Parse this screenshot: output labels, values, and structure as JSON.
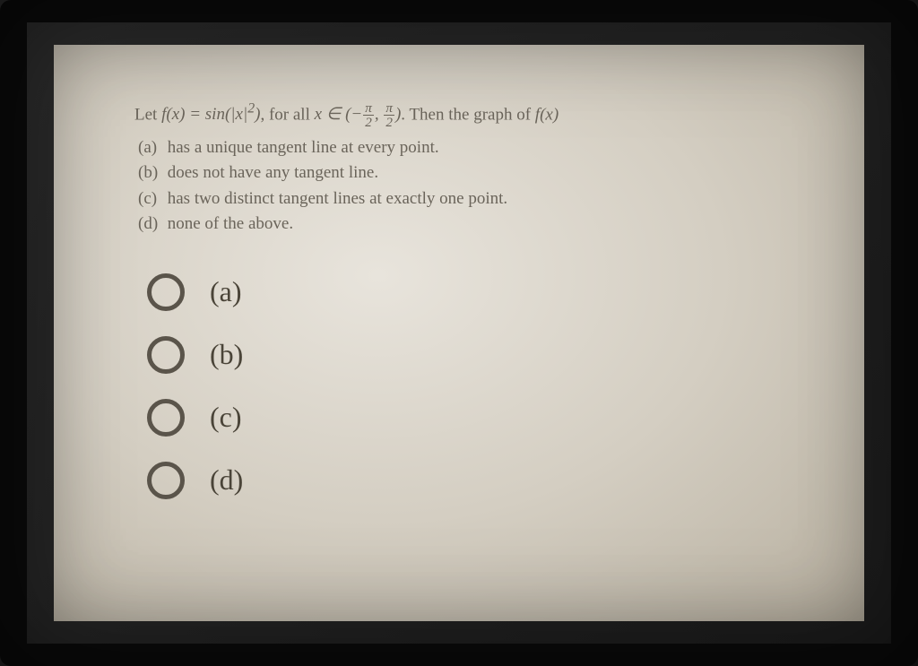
{
  "question": {
    "stem_prefix": "Let ",
    "func_def": "f(x) = sin(|x|²)",
    "stem_mid": ", for all ",
    "domain_expr": "x ∈ (−π/2, π/2)",
    "stem_suffix": ". Then the graph of ",
    "func_ref": "f(x)",
    "options": [
      {
        "label": "(a)",
        "text": "has a unique tangent line at every point."
      },
      {
        "label": "(b)",
        "text": "does not have any tangent line."
      },
      {
        "label": "(c)",
        "text": "has two distinct tangent lines at exactly one point."
      },
      {
        "label": "(d)",
        "text": "none of the above."
      }
    ]
  },
  "choices": [
    {
      "label": "(a)"
    },
    {
      "label": "(b)"
    },
    {
      "label": "(c)"
    },
    {
      "label": "(d)"
    }
  ],
  "colors": {
    "text": "#6a645a",
    "choice_text": "#4a4438",
    "radio_border": "#5a544a",
    "paper_light": "#e8e4dc",
    "paper_dark": "#b8b0a0",
    "frame": "#0a0a0a"
  },
  "typography": {
    "body_fontsize": 19,
    "choice_fontsize": 32,
    "font_family": "Georgia, Times New Roman, serif"
  }
}
